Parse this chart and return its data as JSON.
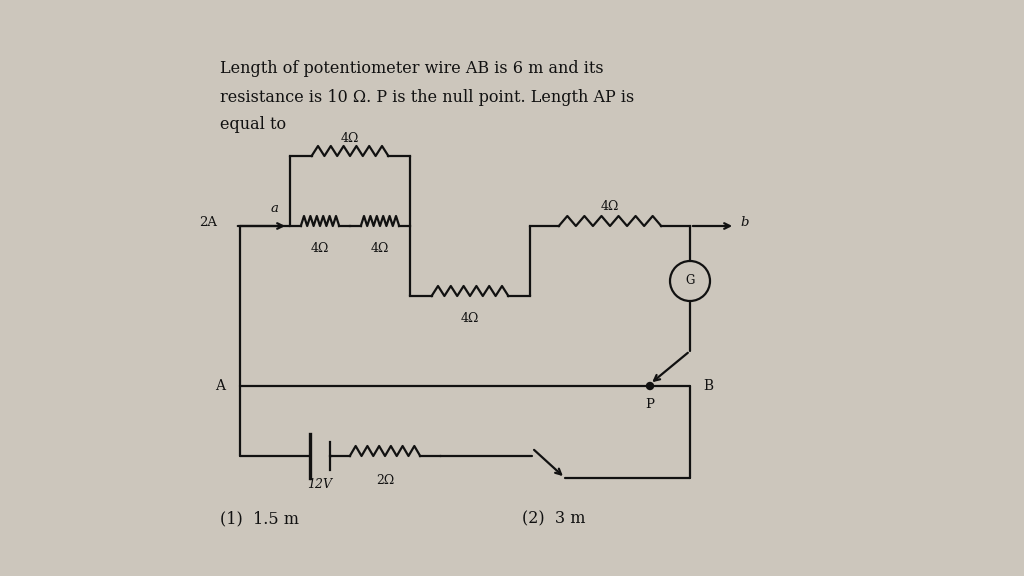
{
  "bg_color": "#ccc6bc",
  "text_color": "#111111",
  "line_color": "#111111",
  "title_line1": "Length of potentiometer wire AB is 6 m and its",
  "title_line2": "resistance is 10 Ω. P is the null point. Length AP is",
  "title_line3": "equal to",
  "answer1": "(1)  1.5 m",
  "answer2": "(2)  3 m"
}
